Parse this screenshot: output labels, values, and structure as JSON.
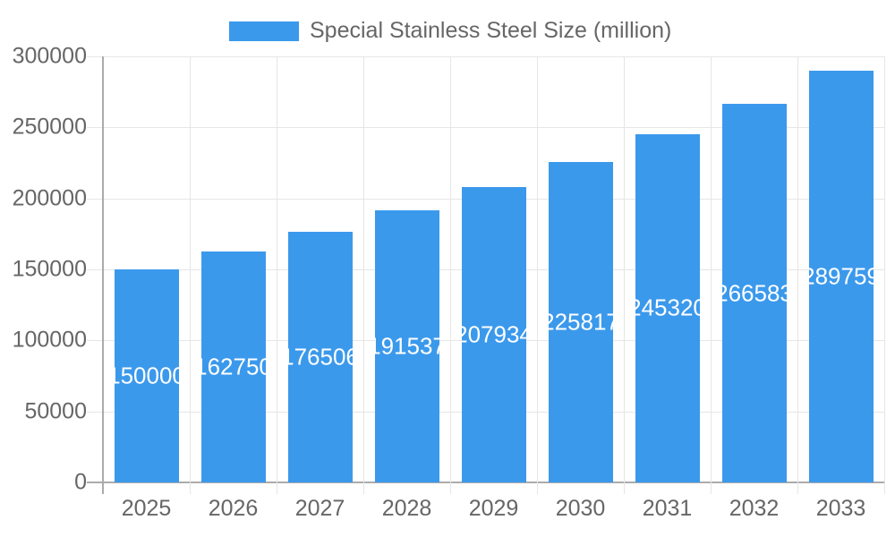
{
  "legend": {
    "label": "Special Stainless Steel Size (million)"
  },
  "colors": {
    "bar": "#3B99EC",
    "grid_light": "#E6E6E6",
    "axis_dark": "#ABABAB",
    "tick_text": "#666666",
    "bar_label_text": "#FFFFFF",
    "background": "#FFFFFF"
  },
  "chart_data": {
    "type": "bar",
    "series_name": "Special Stainless Steel Size (million)",
    "categories": [
      "2025",
      "2026",
      "2027",
      "2028",
      "2029",
      "2030",
      "2031",
      "2032",
      "2033"
    ],
    "values": [
      150000,
      162750,
      176506,
      191537,
      207934,
      225817,
      245320,
      266583,
      289759
    ],
    "xlabel": "",
    "ylabel": "",
    "ylim": [
      0,
      300000
    ],
    "ytick_interval": 50000,
    "ytick_labels": [
      "0",
      "50000",
      "100000",
      "150000",
      "200000",
      "250000",
      "300000"
    ],
    "grid": true,
    "legend_position": "top-center",
    "value_label_position": "inside-center"
  }
}
